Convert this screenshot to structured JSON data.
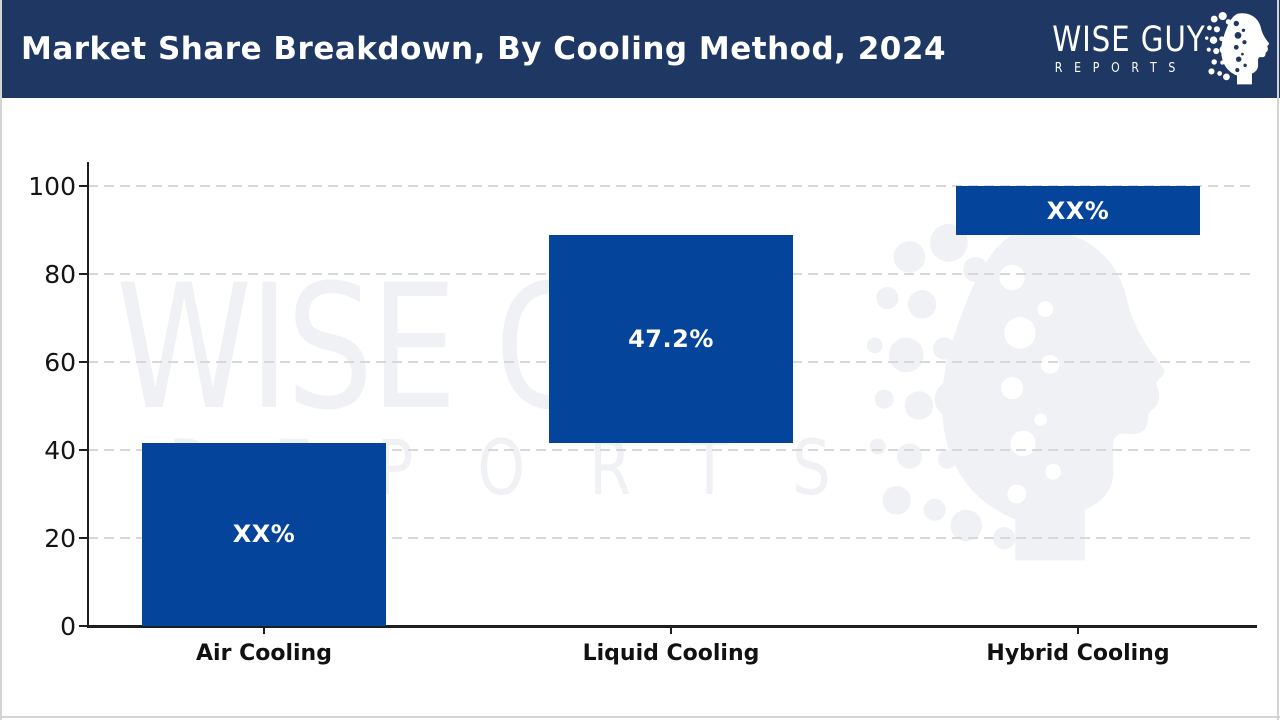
{
  "header": {
    "title": "Market Share Breakdown, By Cooling Method, 2024",
    "logo": {
      "line1": "WISE GUY",
      "line2": "REPORTS"
    }
  },
  "watermark": {
    "line1": "WISE GUY",
    "line2": "REPORTS"
  },
  "chart_data": {
    "type": "bar",
    "variant": "waterfall-floating-segments",
    "title": "Market Share Breakdown, By Cooling Method, 2024",
    "categories": [
      "Air Cooling",
      "Liquid Cooling",
      "Hybrid Cooling"
    ],
    "segments": [
      {
        "category": "Air Cooling",
        "start": 0,
        "end": 41.6,
        "label": "XX%"
      },
      {
        "category": "Liquid Cooling",
        "start": 41.6,
        "end": 88.8,
        "label": "47.2%"
      },
      {
        "category": "Hybrid Cooling",
        "start": 88.8,
        "end": 100,
        "label": "XX%"
      }
    ],
    "xlabel": "",
    "ylabel": "",
    "yticks": [
      0,
      20,
      40,
      60,
      80,
      100
    ],
    "ylim": [
      0,
      100
    ],
    "grid": "horizontal-dashed",
    "legend": "none",
    "colors": {
      "bar": "#05449b",
      "bar_label": "#ffffff",
      "gridline": "#d8d8d8",
      "axis": "#1f1f1f",
      "header_bg": "#1f3763",
      "watermark": "#f0f1f4"
    }
  }
}
